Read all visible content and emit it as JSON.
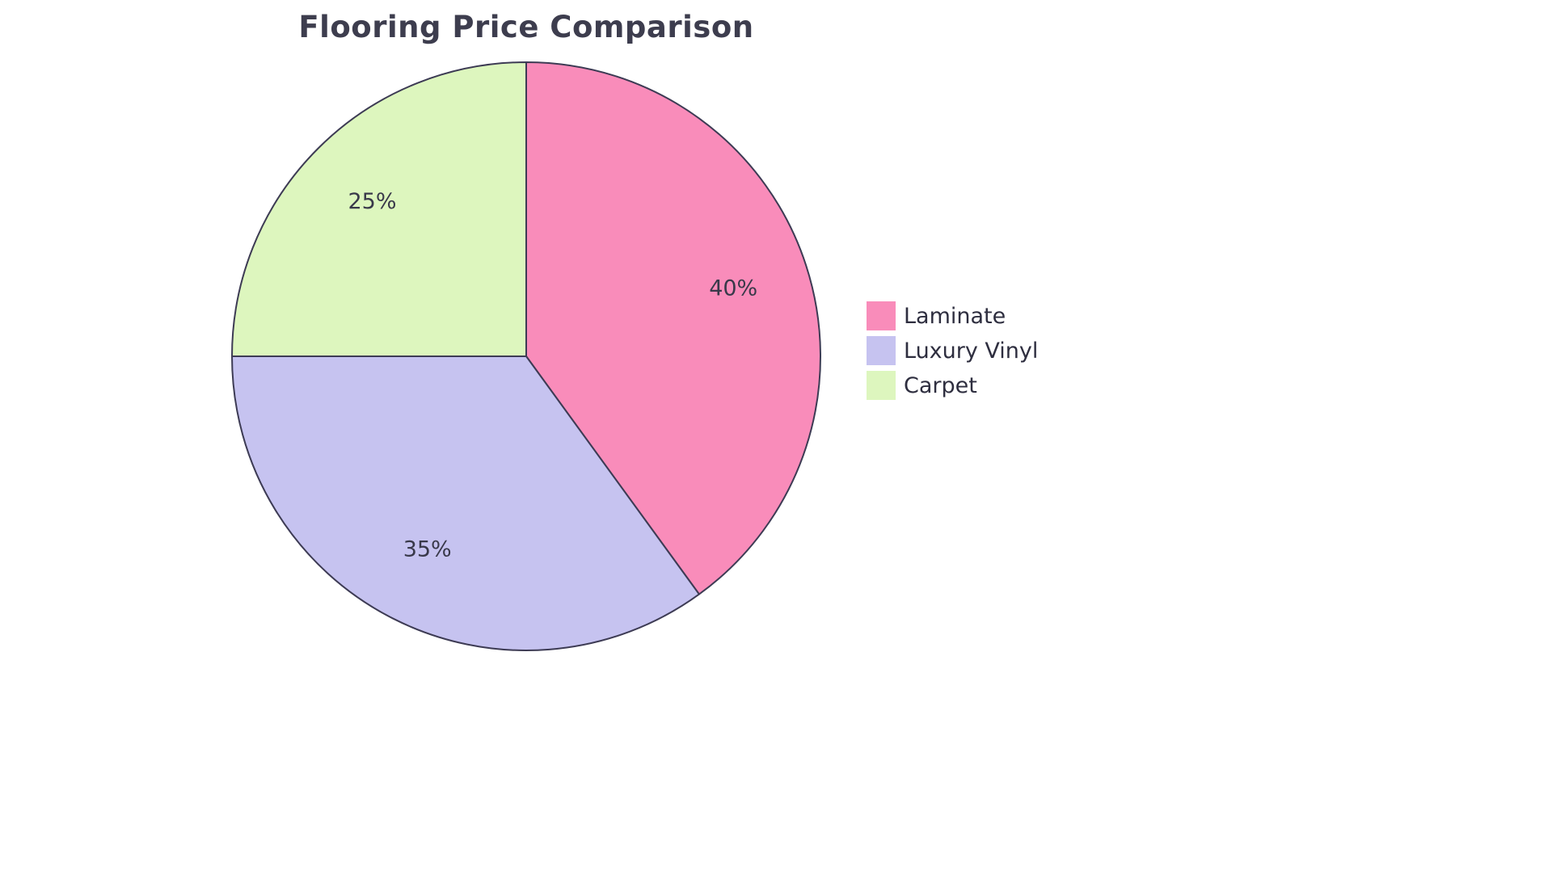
{
  "chart_data": {
    "type": "pie",
    "title": "Flooring Price Comparison",
    "labels": [
      "Laminate",
      "Luxury Vinyl",
      "Carpet"
    ],
    "values": [
      40,
      35,
      25
    ],
    "value_labels": [
      "40%",
      "35%",
      "25%"
    ],
    "colors": [
      "#F98CBA",
      "#C6C3F0",
      "#DDF6BE"
    ],
    "stroke_color": "#3D3B54",
    "start_angle": "top",
    "direction": "clockwise",
    "legend_position": "right",
    "label_color": "#39394A"
  },
  "legend": {
    "items": [
      {
        "label": "Laminate",
        "color": "#F98CBA"
      },
      {
        "label": "Luxury Vinyl",
        "color": "#C6C3F0"
      },
      {
        "label": "Carpet",
        "color": "#DDF6BE"
      }
    ]
  }
}
